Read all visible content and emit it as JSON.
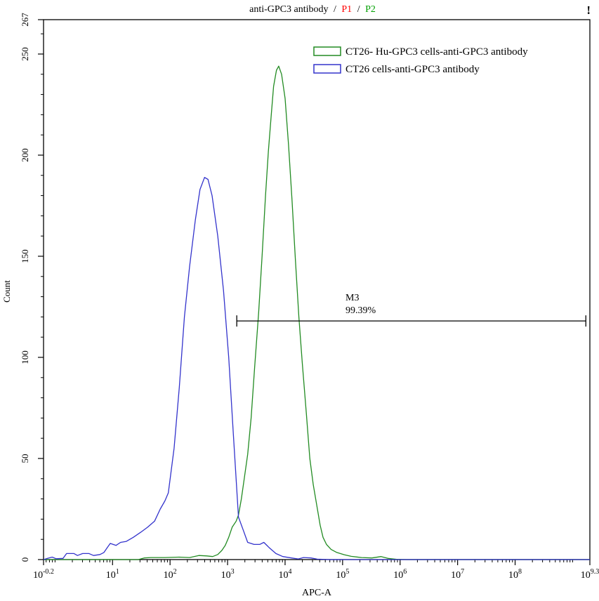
{
  "window": {
    "alert_glyph": "!"
  },
  "title": {
    "sample": "anti-GPC3 antibody",
    "sep1": "/",
    "sep2": "/",
    "gate1": "P1",
    "gate1_color": "#ff0000",
    "gate2": "P2",
    "gate2_color": "#00a000"
  },
  "chart_data": {
    "type": "line",
    "subtype": "flow-cytometry-histogram-overlay",
    "title": "anti-GPC3 antibody / P1 / P2",
    "xlabel": "APC-A",
    "ylabel": "Count",
    "x_axis": {
      "scale": "log10",
      "min_decade": -0.2,
      "max_decade": 9.3,
      "major_ticks": [
        {
          "d": -0.2,
          "label": "-0.2"
        },
        {
          "d": 1,
          "label": "1"
        },
        {
          "d": 2,
          "label": "2"
        },
        {
          "d": 3,
          "label": "3"
        },
        {
          "d": 4,
          "label": "4"
        },
        {
          "d": 5,
          "label": "5"
        },
        {
          "d": 6,
          "label": "6"
        },
        {
          "d": 7,
          "label": "7"
        },
        {
          "d": 8,
          "label": "8"
        },
        {
          "d": 9.3,
          "label": "9.3"
        }
      ],
      "tick_base": "10"
    },
    "y_axis": {
      "min": 0,
      "max": 267,
      "ticks": [
        0,
        50,
        100,
        150,
        200,
        250,
        267
      ],
      "minor_step": 10
    },
    "grid": false,
    "legend_position": "top-right-inside",
    "series": [
      {
        "name": "CT26- Hu-GPC3 cells-anti-GPC3 antibody",
        "color": "#228b22",
        "peak": {
          "x_decade": 3.89,
          "count": 244
        },
        "points": [
          [
            -0.2,
            0
          ],
          [
            1.45,
            0
          ],
          [
            1.55,
            0.8
          ],
          [
            1.67,
            1
          ],
          [
            1.91,
            1
          ],
          [
            2.16,
            1.2
          ],
          [
            2.34,
            1
          ],
          [
            2.5,
            2
          ],
          [
            2.64,
            1.8
          ],
          [
            2.74,
            1.5
          ],
          [
            2.83,
            2.5
          ],
          [
            2.9,
            4.5
          ],
          [
            2.96,
            7
          ],
          [
            3.02,
            11
          ],
          [
            3.08,
            16
          ],
          [
            3.15,
            19
          ],
          [
            3.19,
            22
          ],
          [
            3.24,
            30
          ],
          [
            3.29,
            40
          ],
          [
            3.35,
            52
          ],
          [
            3.41,
            70
          ],
          [
            3.47,
            95
          ],
          [
            3.54,
            122
          ],
          [
            3.6,
            150
          ],
          [
            3.66,
            180
          ],
          [
            3.71,
            202
          ],
          [
            3.76,
            220
          ],
          [
            3.8,
            234
          ],
          [
            3.85,
            242
          ],
          [
            3.89,
            244
          ],
          [
            3.94,
            240
          ],
          [
            4.0,
            228
          ],
          [
            4.06,
            205
          ],
          [
            4.12,
            178
          ],
          [
            4.18,
            148
          ],
          [
            4.24,
            120
          ],
          [
            4.3,
            97
          ],
          [
            4.37,
            72
          ],
          [
            4.43,
            50
          ],
          [
            4.49,
            37
          ],
          [
            4.55,
            27
          ],
          [
            4.61,
            17
          ],
          [
            4.66,
            11
          ],
          [
            4.72,
            7.5
          ],
          [
            4.8,
            5
          ],
          [
            4.9,
            3.5
          ],
          [
            5.03,
            2.4
          ],
          [
            5.15,
            1.6
          ],
          [
            5.33,
            1
          ],
          [
            5.51,
            0.8
          ],
          [
            5.67,
            1.5
          ],
          [
            5.79,
            0.6
          ],
          [
            5.94,
            0.1
          ],
          [
            6.12,
            0
          ],
          [
            9.3,
            0
          ]
        ]
      },
      {
        "name": "CT26 cells-anti-GPC3 antibody",
        "color": "#3333cc",
        "peak": {
          "x_decade": 2.6,
          "count": 189
        },
        "points": [
          [
            -0.2,
            0
          ],
          [
            -0.13,
            0.6
          ],
          [
            -0.05,
            1.2
          ],
          [
            0.02,
            0.4
          ],
          [
            0.14,
            0.6
          ],
          [
            0.2,
            3
          ],
          [
            0.33,
            3
          ],
          [
            0.39,
            2
          ],
          [
            0.48,
            3
          ],
          [
            0.59,
            3
          ],
          [
            0.67,
            2
          ],
          [
            0.78,
            2.5
          ],
          [
            0.85,
            3.5
          ],
          [
            0.91,
            6
          ],
          [
            0.96,
            8
          ],
          [
            1.06,
            7
          ],
          [
            1.14,
            8.5
          ],
          [
            1.24,
            9
          ],
          [
            1.36,
            11
          ],
          [
            1.49,
            13.5
          ],
          [
            1.61,
            16
          ],
          [
            1.73,
            19
          ],
          [
            1.83,
            25
          ],
          [
            1.91,
            29
          ],
          [
            1.97,
            33
          ],
          [
            2.07,
            55
          ],
          [
            2.16,
            85
          ],
          [
            2.25,
            120
          ],
          [
            2.34,
            145
          ],
          [
            2.44,
            168
          ],
          [
            2.52,
            183
          ],
          [
            2.6,
            189
          ],
          [
            2.66,
            188
          ],
          [
            2.73,
            180
          ],
          [
            2.83,
            160
          ],
          [
            2.93,
            133
          ],
          [
            3.02,
            100
          ],
          [
            3.1,
            62
          ],
          [
            3.19,
            21
          ],
          [
            3.28,
            14
          ],
          [
            3.35,
            8.5
          ],
          [
            3.46,
            7.5
          ],
          [
            3.56,
            7.5
          ],
          [
            3.63,
            8.5
          ],
          [
            3.72,
            6
          ],
          [
            3.84,
            3
          ],
          [
            3.96,
            1.5
          ],
          [
            4.11,
            0.8
          ],
          [
            4.23,
            0.3
          ],
          [
            4.32,
            1
          ],
          [
            4.45,
            0.8
          ],
          [
            4.56,
            0.2
          ],
          [
            4.78,
            0
          ],
          [
            9.3,
            0
          ]
        ]
      }
    ],
    "marker": {
      "label": "M3",
      "percent": "99.39%",
      "from_decade": 3.16,
      "to_decade": 9.23,
      "count_level": 118
    }
  }
}
